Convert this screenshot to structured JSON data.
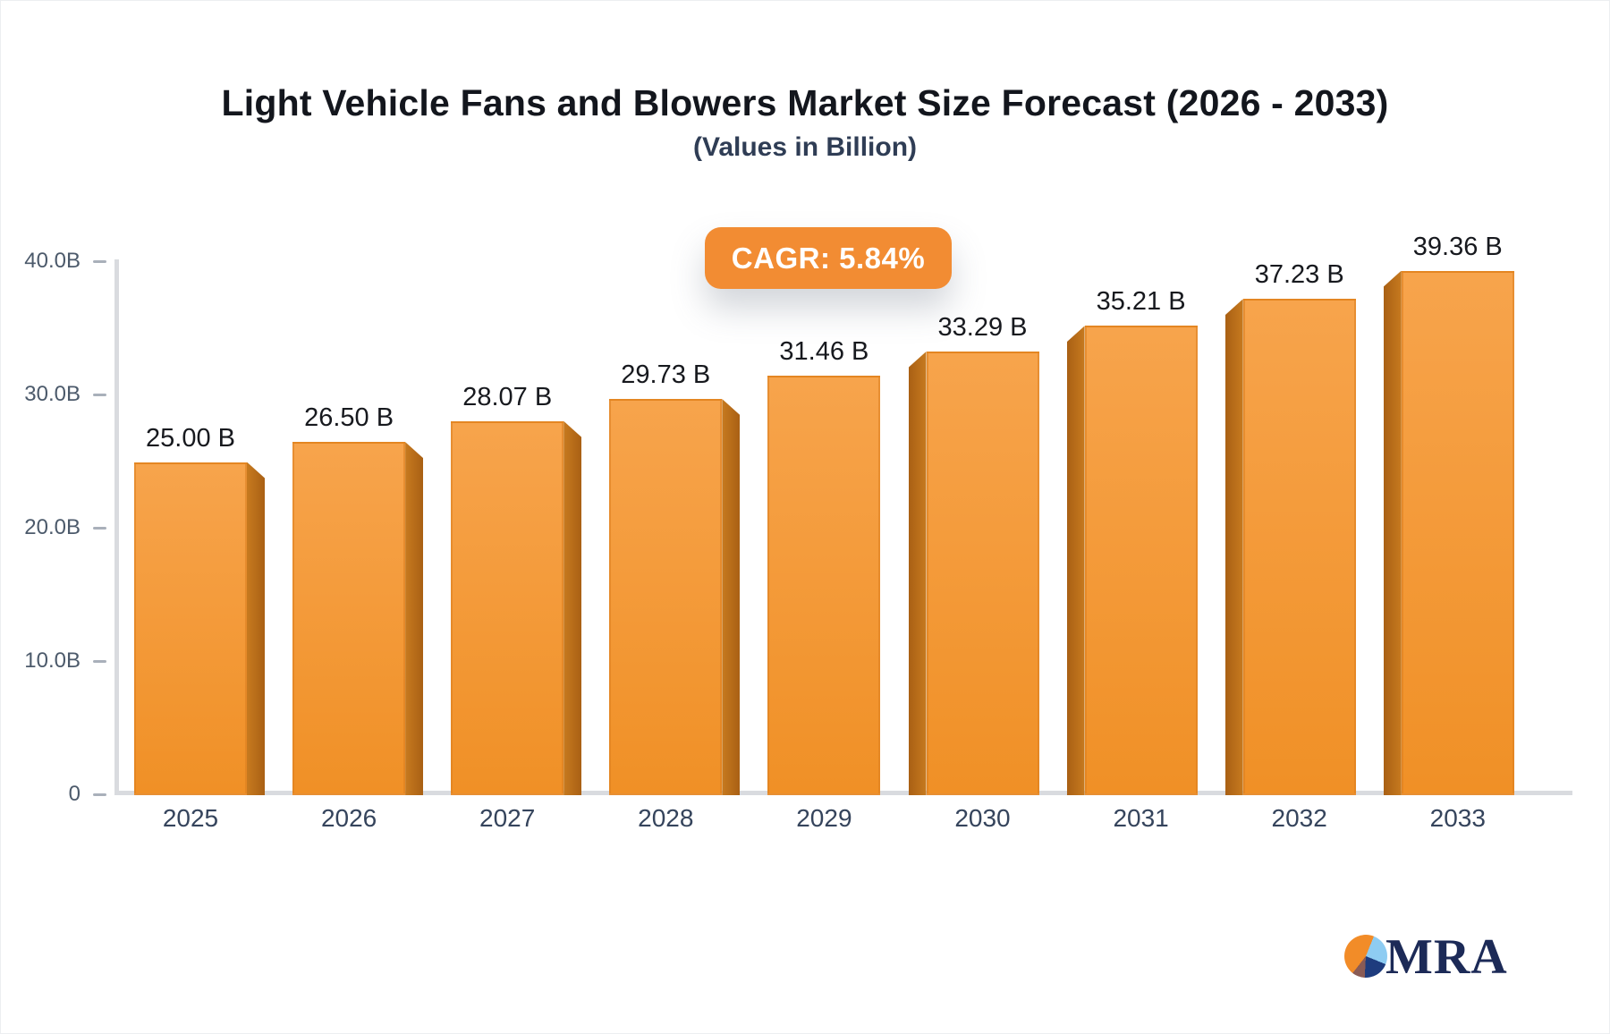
{
  "title": "Light Vehicle Fans and Blowers Market Size Forecast (2026 - 2033)",
  "subtitle": "(Values in Billion)",
  "cagr_badge_label": "CAGR: 5.84%",
  "chart_data": {
    "type": "bar",
    "title": "Light Vehicle Fans and Blowers Market Size Forecast (2026 - 2033)",
    "subtitle": "(Values in Billion)",
    "categories": [
      "2025",
      "2026",
      "2027",
      "2028",
      "2029",
      "2030",
      "2031",
      "2032",
      "2033"
    ],
    "values": [
      25.0,
      26.5,
      28.07,
      29.73,
      31.46,
      33.29,
      35.21,
      37.23,
      39.36
    ],
    "value_labels": [
      "25.00 B",
      "26.50 B",
      "28.07 B",
      "29.73 B",
      "31.46 B",
      "33.29 B",
      "35.21 B",
      "37.23 B",
      "39.36 B"
    ],
    "unit": "Billion",
    "annotation": "CAGR: 5.84%",
    "ylim": [
      0,
      40
    ],
    "y_ticks": [
      {
        "label": "40.0B",
        "value": 40
      },
      {
        "label": "30.0B",
        "value": 30
      },
      {
        "label": "20.0B",
        "value": 20
      },
      {
        "label": "10.0B",
        "value": 10
      },
      {
        "label": "0",
        "value": 0
      }
    ],
    "grid": false,
    "legend": "none",
    "style_3d": true
  },
  "colors": {
    "bar_top": "#f7a44c",
    "bar_bottom": "#f09026",
    "bar_border": "#da7e1f",
    "bar_side_dark": "#a96014",
    "bar_side_light": "#c77a1f",
    "badge_background": "#f28c33",
    "axis_line": "#d9dbdf",
    "tick_text": "#4c5a6b",
    "category_text": "#35445c",
    "value_text": "#17191e",
    "title_text": "#13161d",
    "subtitle_text": "#2f3d55",
    "logo_navy": "#1c2a57",
    "logo_orange": "#f28c28",
    "logo_lightblue": "#8eccf2",
    "logo_maroon": "#8a5b55"
  },
  "logo": {
    "text": "MRA",
    "icon": "pie-chart-icon"
  }
}
